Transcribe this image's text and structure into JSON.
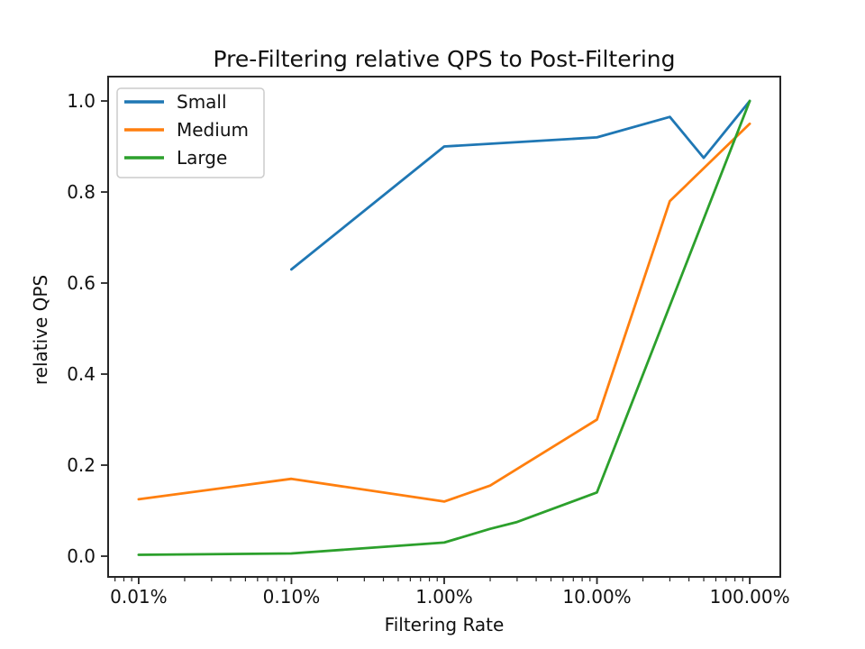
{
  "chart_data": {
    "type": "line",
    "title": "Pre-Filtering relative QPS to Post-Filtering",
    "xlabel": "Filtering Rate",
    "ylabel": "relative QPS",
    "x_scale": "log",
    "grid": false,
    "legend_position": "upper left",
    "x_tick_labels": [
      "0.01%",
      "0.10%",
      "1.00%",
      "10.00%",
      "100.00%"
    ],
    "x_tick_values": [
      0.0001,
      0.001,
      0.01,
      0.1,
      1.0
    ],
    "y_tick_labels": [
      "0.0",
      "0.2",
      "0.4",
      "0.6",
      "0.8",
      "1.0"
    ],
    "y_tick_values": [
      0.0,
      0.2,
      0.4,
      0.6,
      0.8,
      1.0
    ],
    "xlim": [
      6.31e-05,
      1.585
    ],
    "ylim": [
      -0.0455,
      1.0535
    ],
    "series": [
      {
        "name": "Small",
        "color": "#1f77b4",
        "x": [
          0.001,
          0.01,
          0.1,
          0.3,
          0.5,
          1.0
        ],
        "y": [
          0.63,
          0.9,
          0.92,
          0.965,
          0.875,
          1.0
        ]
      },
      {
        "name": "Medium",
        "color": "#ff7f0e",
        "x": [
          0.0001,
          0.001,
          0.01,
          0.02,
          0.1,
          0.3,
          1.0
        ],
        "y": [
          0.125,
          0.17,
          0.12,
          0.155,
          0.3,
          0.78,
          0.95
        ]
      },
      {
        "name": "Large",
        "color": "#2ca02c",
        "x": [
          0.0001,
          0.001,
          0.01,
          0.02,
          0.03,
          0.1,
          1.0
        ],
        "y": [
          0.003,
          0.006,
          0.03,
          0.06,
          0.075,
          0.14,
          1.0
        ]
      }
    ],
    "style": {
      "background": "#ffffff",
      "text_color": "#111111",
      "spine_color": "#262626",
      "legend_border": "#cccccc"
    }
  }
}
